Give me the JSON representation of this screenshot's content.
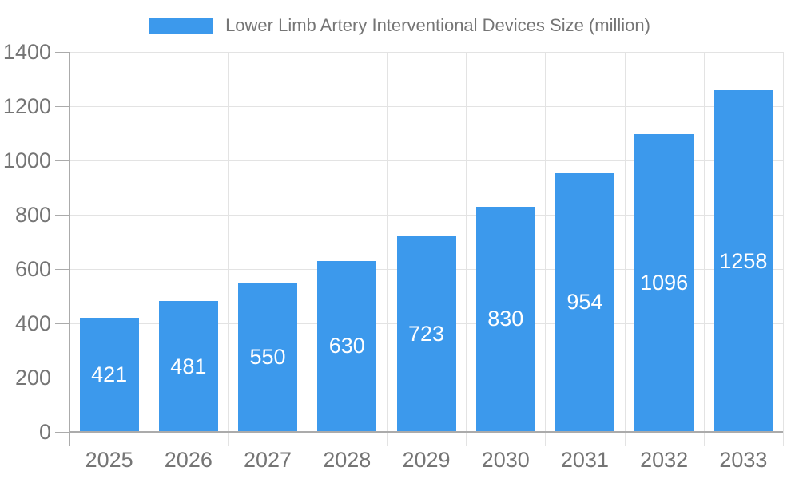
{
  "legend": {
    "label": "Lower Limb Artery Interventional Devices Size (million)"
  },
  "chart_data": {
    "type": "bar",
    "title": "Lower Limb Artery Interventional Devices Size (million)",
    "series_name": "Lower Limb Artery Interventional Devices Size (million)",
    "categories": [
      "2025",
      "2026",
      "2027",
      "2028",
      "2029",
      "2030",
      "2031",
      "2032",
      "2033"
    ],
    "values": [
      421,
      481,
      550,
      630,
      723,
      830,
      954,
      1096,
      1258
    ],
    "xlabel": "",
    "ylabel": "",
    "ylim": [
      0,
      1400
    ],
    "yticks": [
      0,
      200,
      400,
      600,
      800,
      1000,
      1200,
      1400
    ],
    "grid": true,
    "legend_position": "top",
    "colors": {
      "bar": "#3C99EC",
      "bar_value_label": "#FFFFFF",
      "axis_text": "#757575",
      "grid_line": "#E3E3E3",
      "axis_line": "#ABABAB",
      "background": "#FFFFFF"
    }
  }
}
